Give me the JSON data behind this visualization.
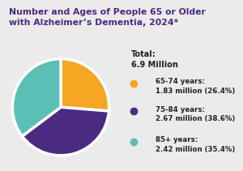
{
  "title_line1": "Number and Ages of People 65 or Older",
  "title_line2": "with Alzheimer’s Dementia, 2024*",
  "title_color": "#4b2b7f",
  "title_fontsize": 7.8,
  "bg_color": "#ebebeb",
  "header_bg": "#ffffff",
  "slices": [
    26.4,
    38.6,
    35.4
  ],
  "colors": [
    "#f5a623",
    "#4b2b7f",
    "#5bbfb5"
  ],
  "startangle": 90,
  "legend_total": "Total:\n6.9 Million",
  "legend_items": [
    {
      "label": "65-74 years:\n1.83 million (26.4%)",
      "color": "#f5a623"
    },
    {
      "label": "75-84 years:\n2.67 million (38.6%)",
      "color": "#4b2b7f"
    },
    {
      "label": "85+ years:\n2.42 million (35.4%)",
      "color": "#5bbfb5"
    }
  ],
  "legend_fontsize": 6.2,
  "total_fontsize": 7.0,
  "divider_color": "#4b2b7f"
}
